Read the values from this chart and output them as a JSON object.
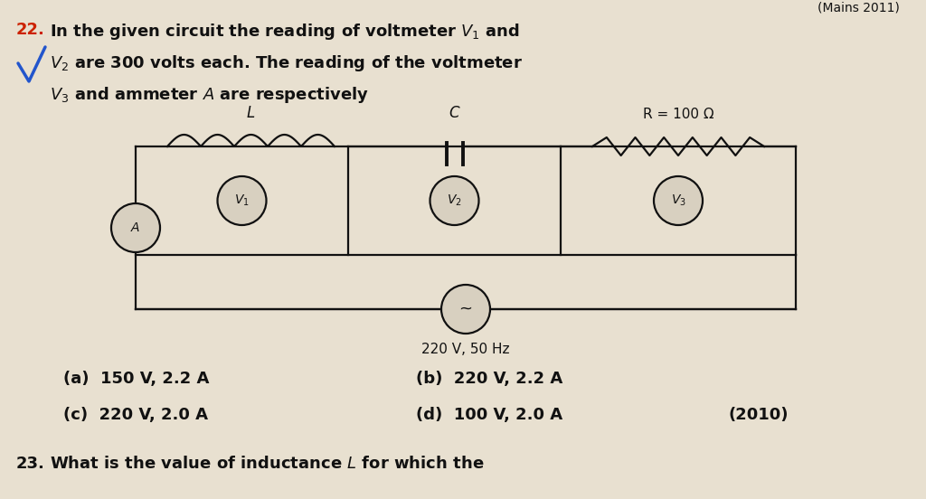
{
  "label_L": "L",
  "label_C": "C",
  "label_R": "R = 100 Ω",
  "label_source": "220 V, 50 Hz",
  "option_a": "(a)  150 V, 2.2 A",
  "option_b": "(b)  220 V, 2.2 A",
  "option_c": "(c)  220 V, 2.0 A",
  "option_d": "(d)  100 V, 2.0 A",
  "year": "(2010)",
  "mains": "(Mains 2011)",
  "bg_color": "#e8e0d0",
  "text_color": "#111111",
  "circuit_color": "#111111",
  "meter_fill": "#d8d0c0",
  "q22_num_color": "#cc2200"
}
